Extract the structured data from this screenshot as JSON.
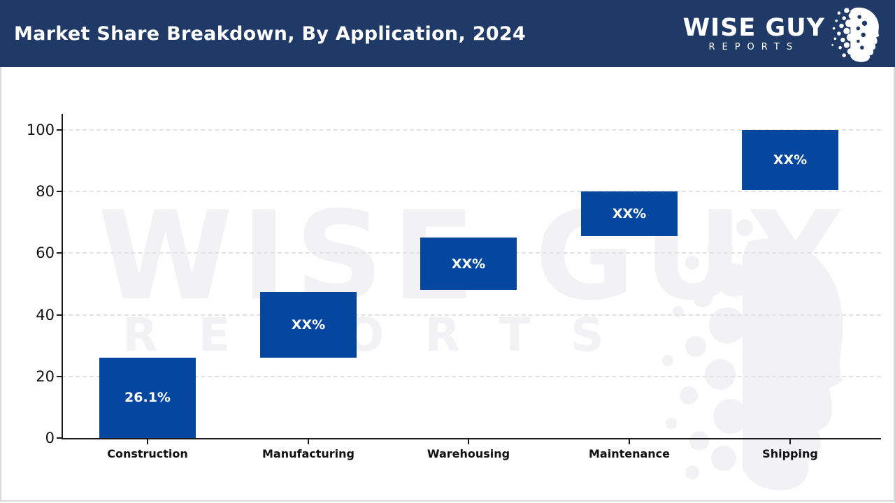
{
  "header": {
    "title": "Market Share Breakdown, By Application, 2024",
    "bg_color": "#203a68",
    "logo": {
      "line1": "WISE GUY",
      "line2": "REPORTS"
    }
  },
  "watermark": {
    "line1": "WISE GUY",
    "line2": "REPORTS"
  },
  "chart_data": {
    "type": "bar",
    "subtype": "waterfall",
    "title": "Market Share Breakdown, By Application, 2024",
    "xlabel": "",
    "ylabel": "",
    "categories": [
      "Construction",
      "Manufacturing",
      "Warehousing",
      "Maintenance",
      "Shipping"
    ],
    "segments": [
      {
        "category": "Construction",
        "start": 0,
        "end": 26.1,
        "label": "26.1%"
      },
      {
        "category": "Manufacturing",
        "start": 26.0,
        "end": 47.5,
        "label": "XX%"
      },
      {
        "category": "Warehousing",
        "start": 48.0,
        "end": 65.0,
        "label": "XX%"
      },
      {
        "category": "Maintenance",
        "start": 65.5,
        "end": 80.0,
        "label": "XX%"
      },
      {
        "category": "Shipping",
        "start": 80.5,
        "end": 100.0,
        "label": "XX%"
      }
    ],
    "y_ticks": [
      0,
      20,
      40,
      60,
      80,
      100
    ],
    "ylim": [
      0,
      105
    ],
    "grid": "horizontal-dashed",
    "legend": "none",
    "bar_color": "#05479e",
    "bar_label_color": "#ffffff",
    "axis_color": "#1a1a1a",
    "grid_color": "#e2e2e2",
    "watermark_color": "#f2f2f4"
  }
}
